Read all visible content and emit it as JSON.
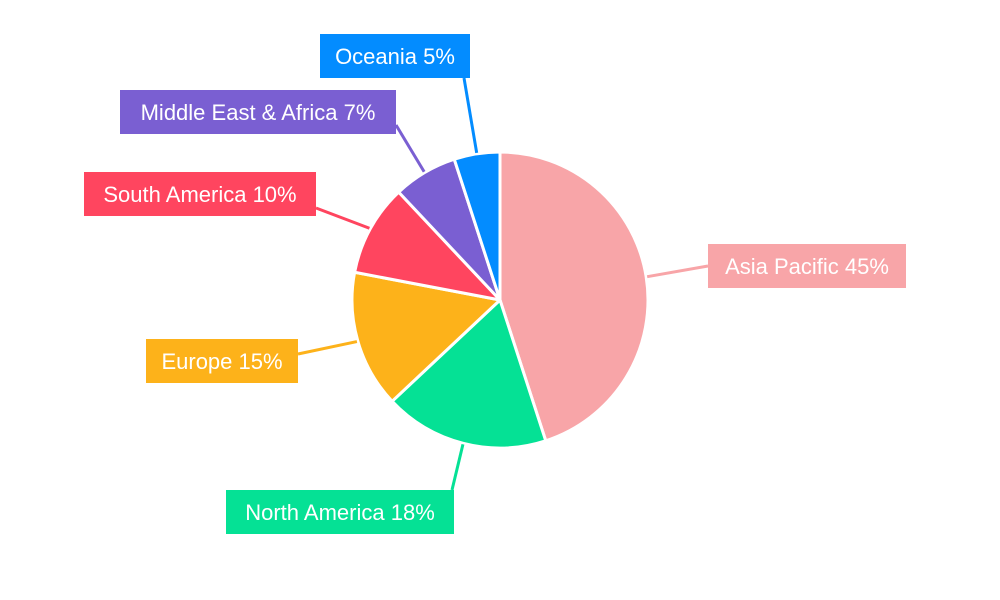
{
  "chart_data": {
    "type": "pie",
    "title": "",
    "slices": [
      {
        "name": "Asia Pacific",
        "value": 45,
        "label": "Asia Pacific 45%",
        "color": "#F8A5A8"
      },
      {
        "name": "North America",
        "value": 18,
        "label": "North America 18%",
        "color": "#05E195"
      },
      {
        "name": "Europe",
        "value": 15,
        "label": "Europe 15%",
        "color": "#FDB21A"
      },
      {
        "name": "South America",
        "value": 10,
        "label": "South America 10%",
        "color": "#FF455F"
      },
      {
        "name": "Middle East & Africa",
        "value": 7,
        "label": "Middle East & Africa 7%",
        "color": "#7A5FD2"
      },
      {
        "name": "Oceania",
        "value": 5,
        "label": "Oceania 5%",
        "color": "#038CFF"
      }
    ],
    "start_angle": "12 o'clock",
    "direction": "clockwise",
    "legend": "none",
    "label_style": "colored boxes with leader lines"
  }
}
